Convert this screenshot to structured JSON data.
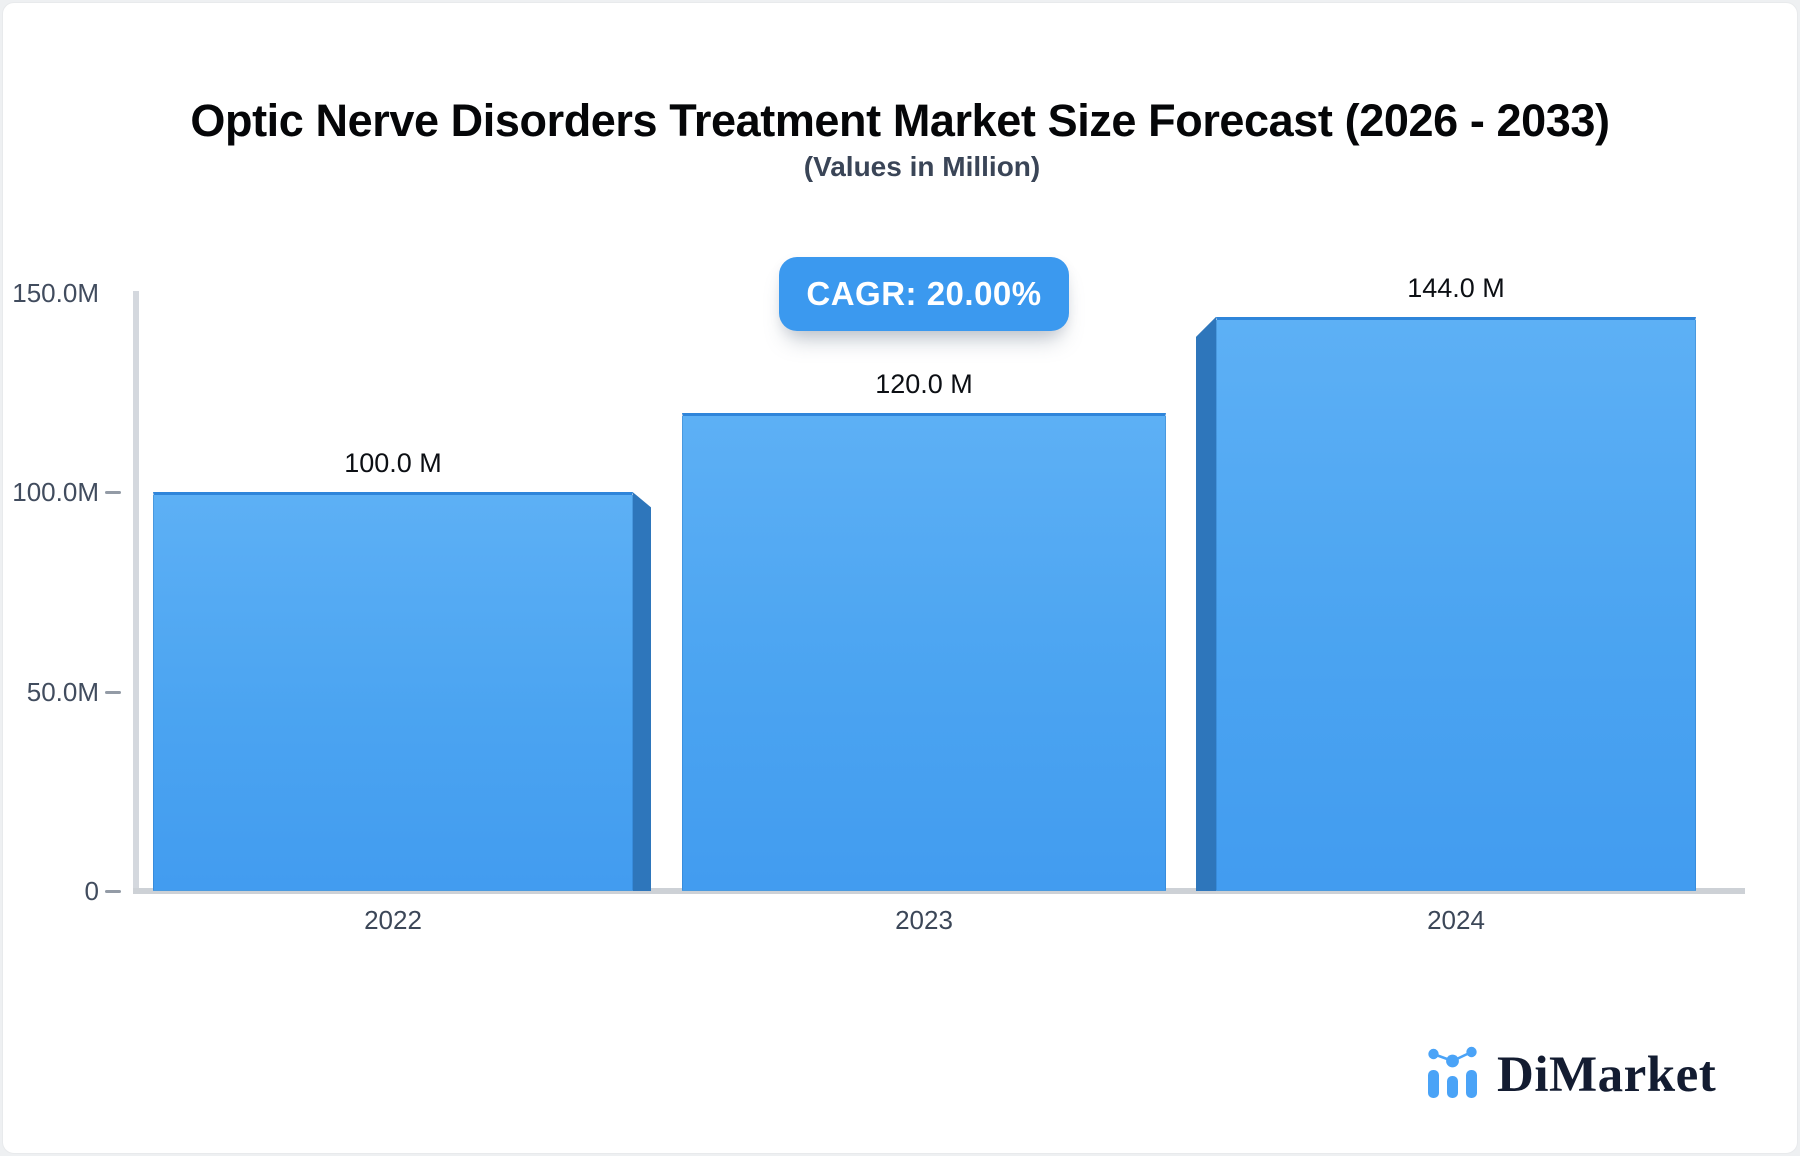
{
  "header": {
    "title": "Optic Nerve Disorders Treatment Market Size Forecast (2026 - 2033)",
    "subtitle": "(Values in Million)"
  },
  "badge": {
    "label": "CAGR: 20.00%",
    "background": "#3b99ef",
    "text_color": "#ffffff"
  },
  "branding": {
    "name": "DiMarket",
    "icon": "bar-chart-logo-icon",
    "icon_color": "#4aa3f7",
    "text_color": "#131c31"
  },
  "colors": {
    "bar_face_top": "#5db0f5",
    "bar_face_bottom": "#429cf0",
    "bar_side": "#2e76bb",
    "axis_line": "#d1d5da",
    "tick_label": "#414c5e",
    "category_label": "#3c4758"
  },
  "chart_data": {
    "type": "bar",
    "title": "Optic Nerve Disorders Treatment Market Size Forecast (2026 - 2033)",
    "subtitle": "(Values in Million)",
    "unit": "Million",
    "cagr_percent": 20.0,
    "categories": [
      "2022",
      "2023",
      "2024"
    ],
    "values": [
      100.0,
      120.0,
      144.0
    ],
    "value_labels": [
      "100.0 M",
      "120.0 M",
      "144.0 M"
    ],
    "y_axis": {
      "range": [
        0,
        150
      ],
      "ticks": [
        {
          "label": "150.0M",
          "value": 150
        },
        {
          "label": "100.0M",
          "value": 100
        },
        {
          "label": "50.0M",
          "value": 50
        },
        {
          "label": "0",
          "value": 0
        }
      ]
    },
    "grid": false,
    "legend": null,
    "bar_style": "3d-extruded"
  }
}
